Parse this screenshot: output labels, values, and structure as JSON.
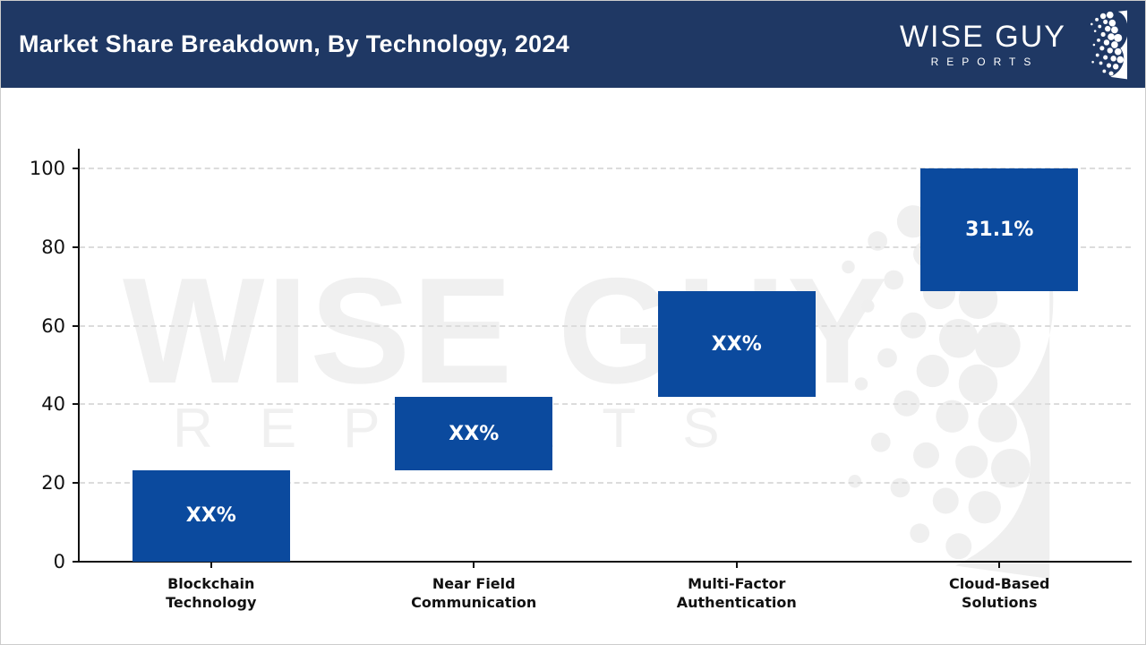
{
  "header": {
    "title": "Market Share Breakdown, By Technology, 2024",
    "bg_color": "#1F3864",
    "logo": {
      "line1": "WISE GUY",
      "line2": "REPORTS"
    }
  },
  "watermark": {
    "line1": "WISE GUY",
    "line2": "REPORTS"
  },
  "chart_data": {
    "type": "bar",
    "subtype": "floating-waterfall",
    "title": "Market Share Breakdown, By Technology, 2024",
    "categories": [
      "Blockchain Technology",
      "Near Field Communication",
      "Multi-Factor Authentication",
      "Cloud-Based Solutions"
    ],
    "category_lines": [
      [
        "Blockchain",
        "Technology"
      ],
      [
        "Near Field",
        "Communication"
      ],
      [
        "Multi-Factor",
        "Authentication"
      ],
      [
        "Cloud-Based",
        "Solutions"
      ]
    ],
    "segments": [
      {
        "from": 0,
        "to": 23.3,
        "label": "XX%"
      },
      {
        "from": 23.3,
        "to": 41.8,
        "label": "XX%"
      },
      {
        "from": 41.8,
        "to": 68.9,
        "label": "XX%"
      },
      {
        "from": 68.9,
        "to": 100,
        "label": "31.1%"
      }
    ],
    "values": [
      23.3,
      18.5,
      27.1,
      31.1
    ],
    "xlabel": "",
    "ylabel": "",
    "ylim": [
      0,
      100
    ],
    "yticks": [
      0,
      20,
      40,
      60,
      80,
      100
    ],
    "bar_color": "#0B4A9E",
    "grid": "horizontal-dashed",
    "grid_color": "#DCDCDC",
    "axis_color": "#111111",
    "legend": "none"
  }
}
